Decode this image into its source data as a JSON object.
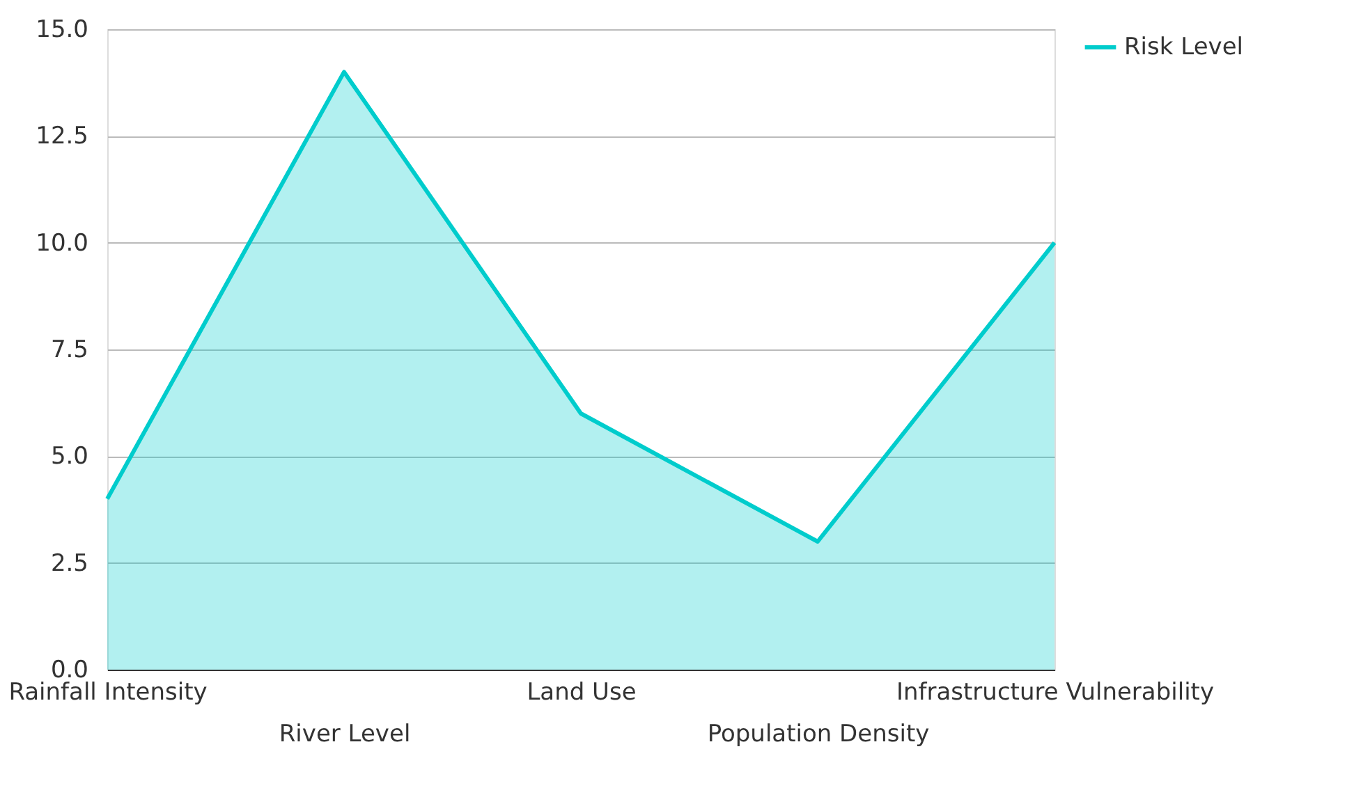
{
  "chart_data": {
    "type": "area",
    "categories": [
      "Rainfall Intensity",
      "River Level",
      "Land Use",
      "Population Density",
      "Infrastructure Vulnerability"
    ],
    "series": [
      {
        "name": "Risk Level",
        "color": "#00cccc",
        "values": [
          4,
          14,
          6,
          3,
          10
        ]
      }
    ],
    "ylim": [
      0,
      15
    ],
    "yticks": [
      {
        "value": 0,
        "label": "0.0"
      },
      {
        "value": 2.5,
        "label": "2.5"
      },
      {
        "value": 5,
        "label": "5.0"
      },
      {
        "value": 7.5,
        "label": "7.5"
      },
      {
        "value": 10,
        "label": "10.0"
      },
      {
        "value": 12.5,
        "label": "12.5"
      },
      {
        "value": 15,
        "label": "15.0"
      }
    ],
    "grid": "y",
    "legend": "top right"
  }
}
